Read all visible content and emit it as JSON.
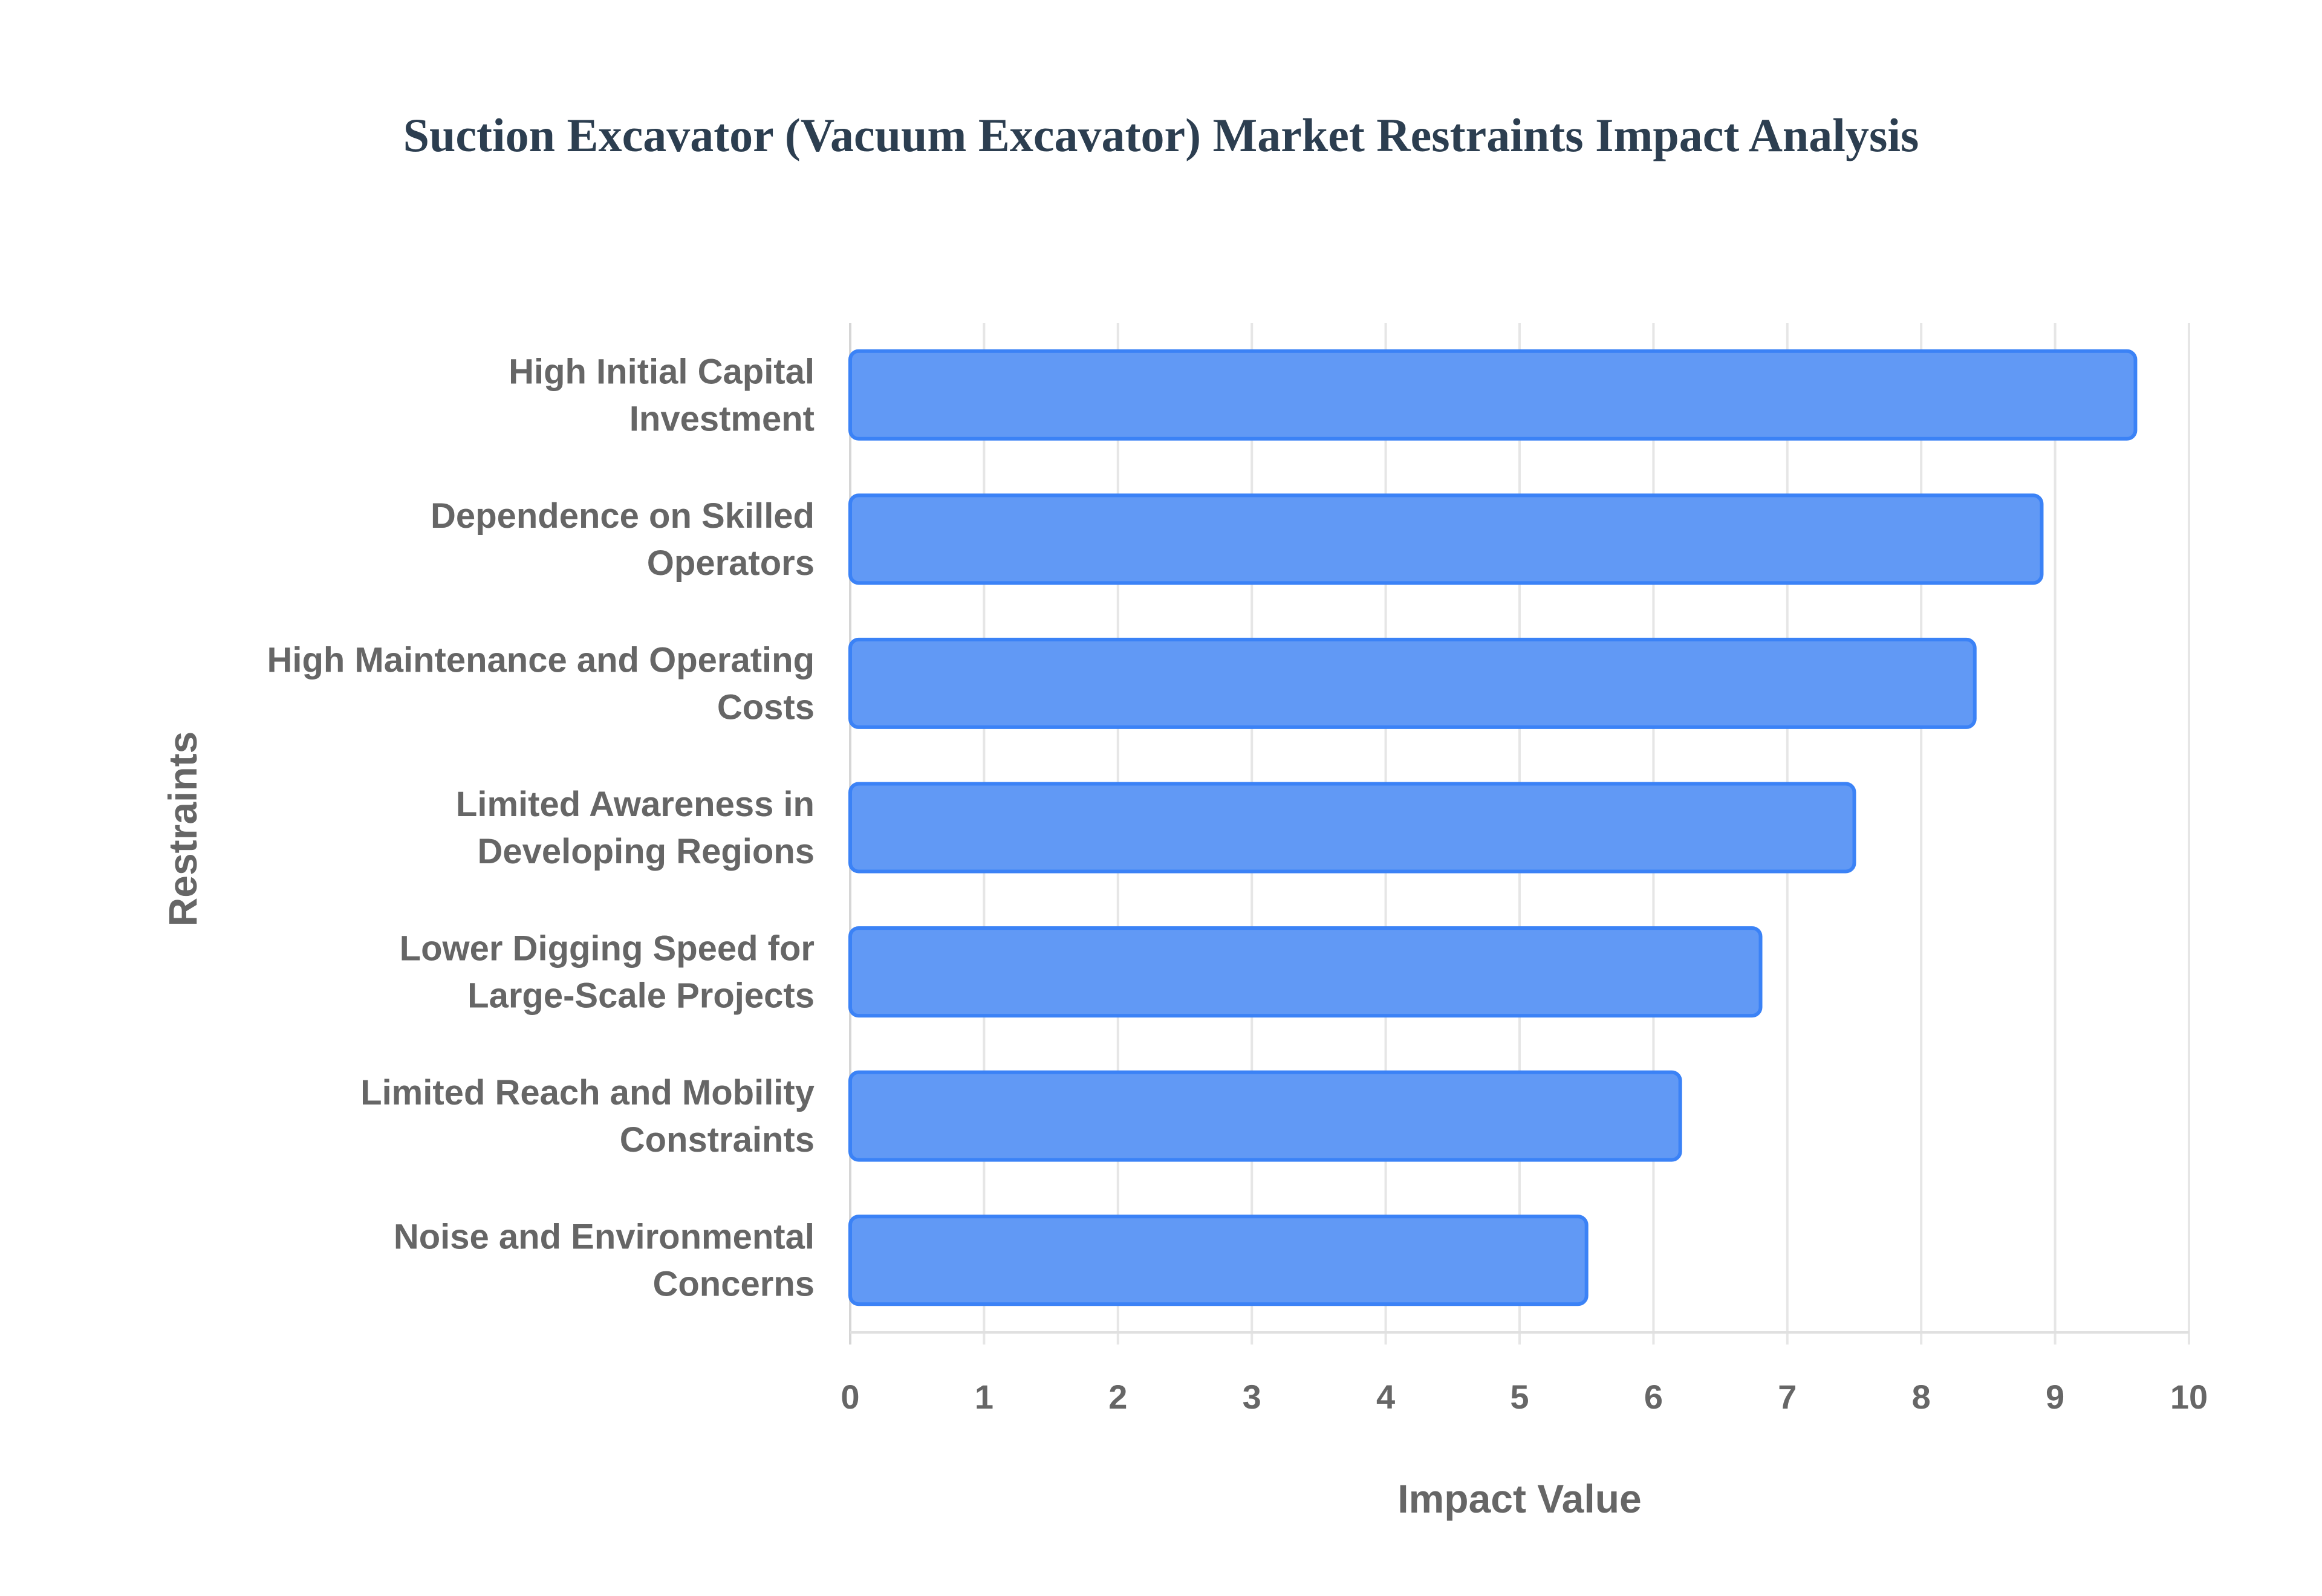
{
  "chart_data": {
    "type": "bar",
    "orientation": "horizontal",
    "title": "Suction Excavator (Vacuum Excavator) Market Restraints Impact Analysis",
    "xlabel": "Impact Value",
    "ylabel": "Restraints",
    "xlim": [
      0,
      10
    ],
    "xticks": [
      "0",
      "1",
      "2",
      "3",
      "4",
      "5",
      "6",
      "7",
      "8",
      "9",
      "10"
    ],
    "grid": true,
    "categories": [
      [
        "High Initial Capital",
        "Investment"
      ],
      [
        "Dependence on Skilled",
        "Operators"
      ],
      [
        "High Maintenance and Operating",
        "Costs"
      ],
      [
        "Limited Awareness in",
        "Developing Regions"
      ],
      [
        "Lower Digging Speed for",
        "Large-Scale Projects"
      ],
      [
        "Limited Reach and Mobility",
        "Constraints"
      ],
      [
        "Noise and Environmental",
        "Concerns"
      ]
    ],
    "values": [
      9.6,
      8.9,
      8.4,
      7.5,
      6.8,
      6.2,
      5.5
    ],
    "bar_color": "#6199f5",
    "bar_border_color": "#3b82f6"
  }
}
